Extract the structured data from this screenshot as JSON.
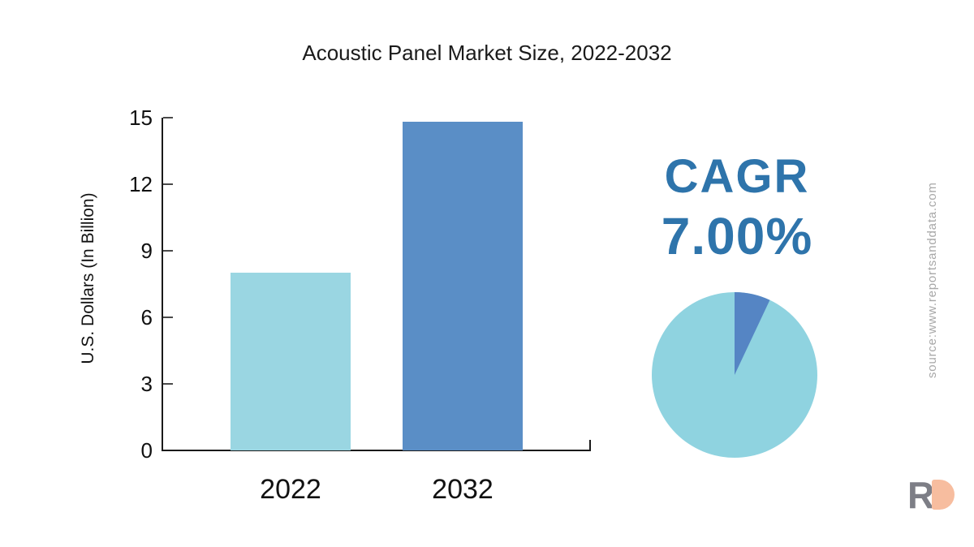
{
  "title": "Acoustic Panel Market Size, 2022-2032",
  "colors": {
    "bar_2022": "#9ad6e2",
    "bar_2032": "#5a8ec6",
    "pie_wedge": "#5585c4",
    "pie_main": "#8fd3e0",
    "cagr_text": "#2e74ab",
    "axis": "#1a1a1a",
    "source_text": "#a8a8a8",
    "logo_r": "#7d7e86",
    "logo_d": "#f7bd9f"
  },
  "chart_data": [
    {
      "type": "bar",
      "title": "Acoustic Panel Market Size, 2022-2032",
      "categories": [
        "2022",
        "2032"
      ],
      "values": [
        8.0,
        14.8
      ],
      "xlabel": "",
      "ylabel": "U.S. Dollars (In Billion)",
      "ylim": [
        0,
        15
      ],
      "yticks": [
        0,
        3,
        6,
        9,
        12,
        15
      ],
      "grid": false,
      "legend_position": "none",
      "bar_colors": [
        "#9ad6e2",
        "#5a8ec6"
      ]
    },
    {
      "type": "pie",
      "labels": [
        "CAGR 7.00%",
        "remainder"
      ],
      "values": [
        7,
        93
      ],
      "colors": [
        "#5585c4",
        "#8fd3e0"
      ],
      "start_angle_deg": 0,
      "direction": "clockwise",
      "annotation": "CAGR 7.00%"
    }
  ],
  "cagr": {
    "label": "CAGR",
    "value": "7.00%"
  },
  "source": {
    "text": "source:www.reportsanddata.com"
  },
  "logo": {
    "letter_r": "R",
    "letter_d": "D"
  }
}
